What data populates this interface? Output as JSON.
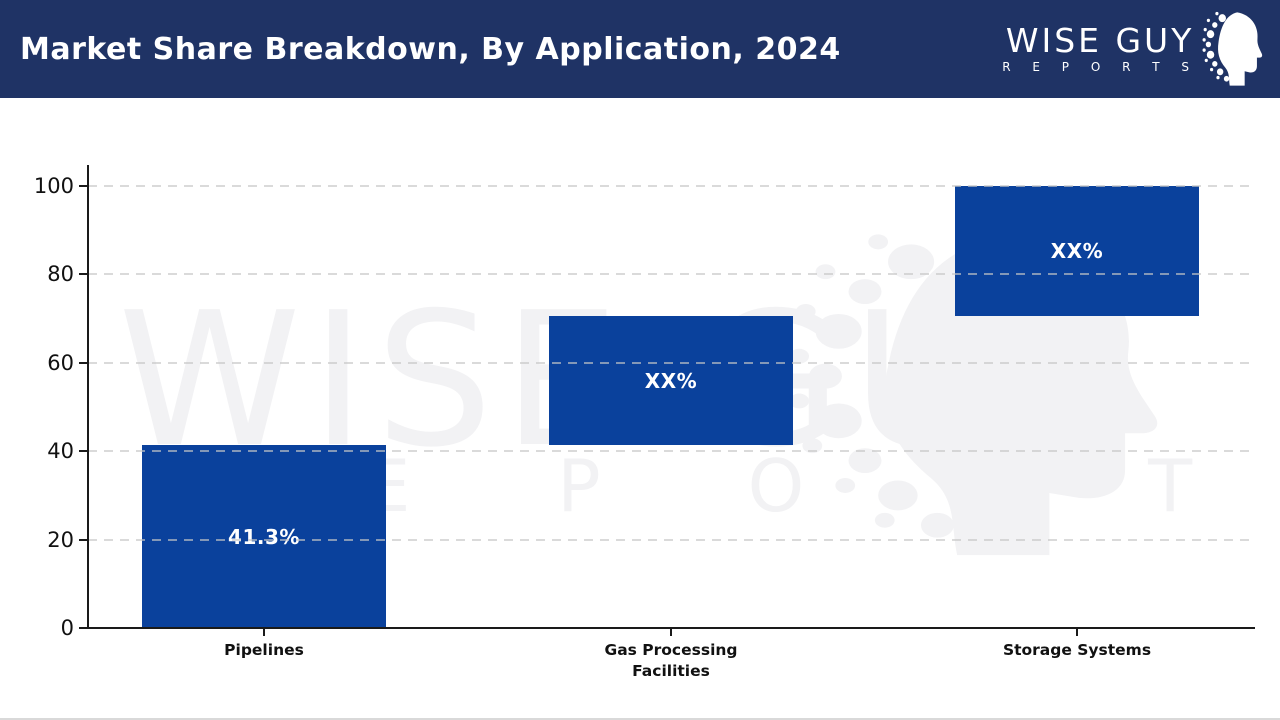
{
  "header": {
    "title": "Market Share Breakdown, By Application, 2024",
    "logo": {
      "line1": "WISE GUY",
      "line2": "R E P O R T S"
    }
  },
  "watermark": {
    "line1": "WISE GUY",
    "line2": "R E P O R T S"
  },
  "colors": {
    "header_bg": "#1f3365",
    "bar": "#0a419c",
    "axis": "#1a1a1a",
    "grid": "#c6c6c6",
    "watermark": "#f2f2f4",
    "label_text": "#ffffff"
  },
  "chart_data": {
    "type": "bar",
    "variant": "floating-segment-breakdown",
    "title": "Market Share Breakdown, By Application, 2024",
    "categories": [
      "Pipelines",
      "Gas Processing Facilities",
      "Storage Systems"
    ],
    "xtick_lines": [
      [
        "Pipelines"
      ],
      [
        "Gas Processing",
        "Facilities"
      ],
      [
        "Storage Systems"
      ]
    ],
    "segments": [
      {
        "category": "Pipelines",
        "start": 0,
        "end": 41.3,
        "label": "41.3%"
      },
      {
        "category": "Gas Processing Facilities",
        "start": 41.3,
        "end": 70.6,
        "label": "XX%"
      },
      {
        "category": "Storage Systems",
        "start": 70.6,
        "end": 100,
        "label": "XX%"
      }
    ],
    "ylim": [
      0,
      100
    ],
    "yticks": [
      "0",
      "20",
      "40",
      "60",
      "80",
      "100"
    ],
    "ytick_values": [
      0,
      20,
      40,
      60,
      80,
      100
    ],
    "grid": "horizontal-dashed",
    "legend": null,
    "bar_color": "#0a419c"
  }
}
